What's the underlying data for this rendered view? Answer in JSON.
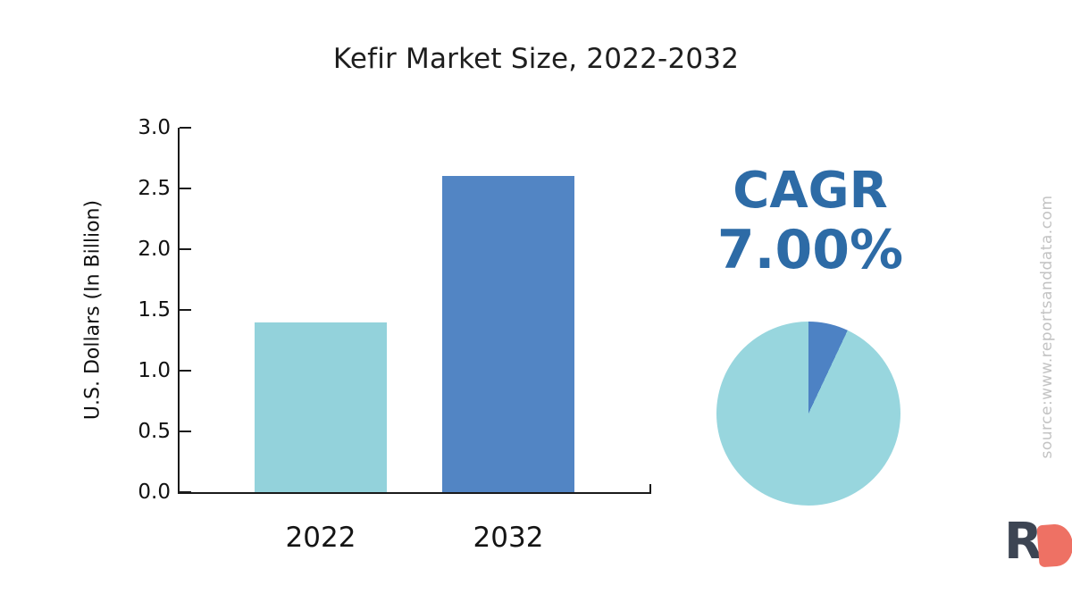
{
  "title": "Kefir Market Size, 2022-2032",
  "chart_data": [
    {
      "type": "bar",
      "title": "Kefir Market Size, 2022-2032",
      "categories": [
        "2022",
        "2032"
      ],
      "values": [
        1.4,
        2.6
      ],
      "bar_colors": [
        "#93d2db",
        "#5285c4"
      ],
      "xlabel": "",
      "ylabel": "U.S. Dollars (In Billion)",
      "ylim": [
        0,
        3.0
      ],
      "yticks": [
        "0.0",
        "0.5",
        "1.0",
        "1.5",
        "2.0",
        "2.5",
        "3.0"
      ],
      "grid": false,
      "legend": "none"
    },
    {
      "type": "pie",
      "labels": [
        "CAGR 7.00%",
        "remainder"
      ],
      "values": [
        7,
        93
      ],
      "colors": [
        "#4d82c4",
        "#98d6de"
      ],
      "start_angle": "top",
      "direction": "clockwise"
    }
  ],
  "cagr": {
    "label": "CAGR",
    "value": "7.00%",
    "color": "#2d6ba6"
  },
  "source": {
    "text": "source:www.reportsanddata.com"
  },
  "logo": {
    "letter": "R",
    "accent_color": "#ee7164",
    "letter_color": "#3d4553"
  },
  "colors": {
    "axis": "#1a1a1a",
    "title_text": "#1e1e1e",
    "source_text": "#c3c3c3"
  }
}
